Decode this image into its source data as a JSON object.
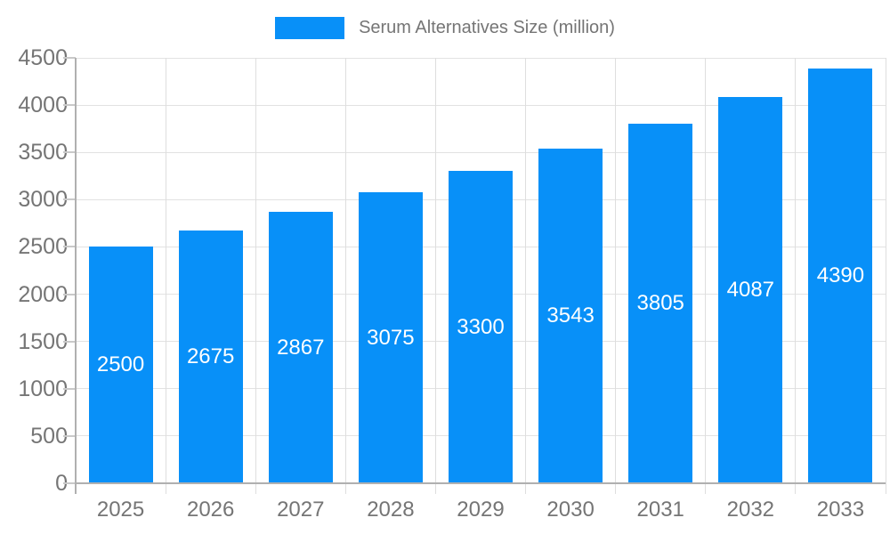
{
  "chart_data": {
    "type": "bar",
    "title": "Serum Alternatives Size (million)",
    "legend": {
      "label": "Serum Alternatives Size (million)",
      "position": "top-center"
    },
    "categories": [
      "2025",
      "2026",
      "2027",
      "2028",
      "2029",
      "2030",
      "2031",
      "2032",
      "2033"
    ],
    "series": [
      {
        "name": "Serum Alternatives Size (million)",
        "values": [
          2500,
          2675,
          2867,
          3075,
          3300,
          3543,
          3805,
          4087,
          4390
        ]
      }
    ],
    "xlabel": "",
    "ylabel": "",
    "ylim": [
      0,
      4500
    ],
    "ytick_step": 500,
    "grid": true,
    "value_labels": "inside-center",
    "colors": {
      "bar": "#0890F8",
      "tick_text": "#757575",
      "grid": "#e2e2e2",
      "axis": "#b0b0b0",
      "value_label_text": "#ffffff",
      "background": "#ffffff"
    }
  }
}
